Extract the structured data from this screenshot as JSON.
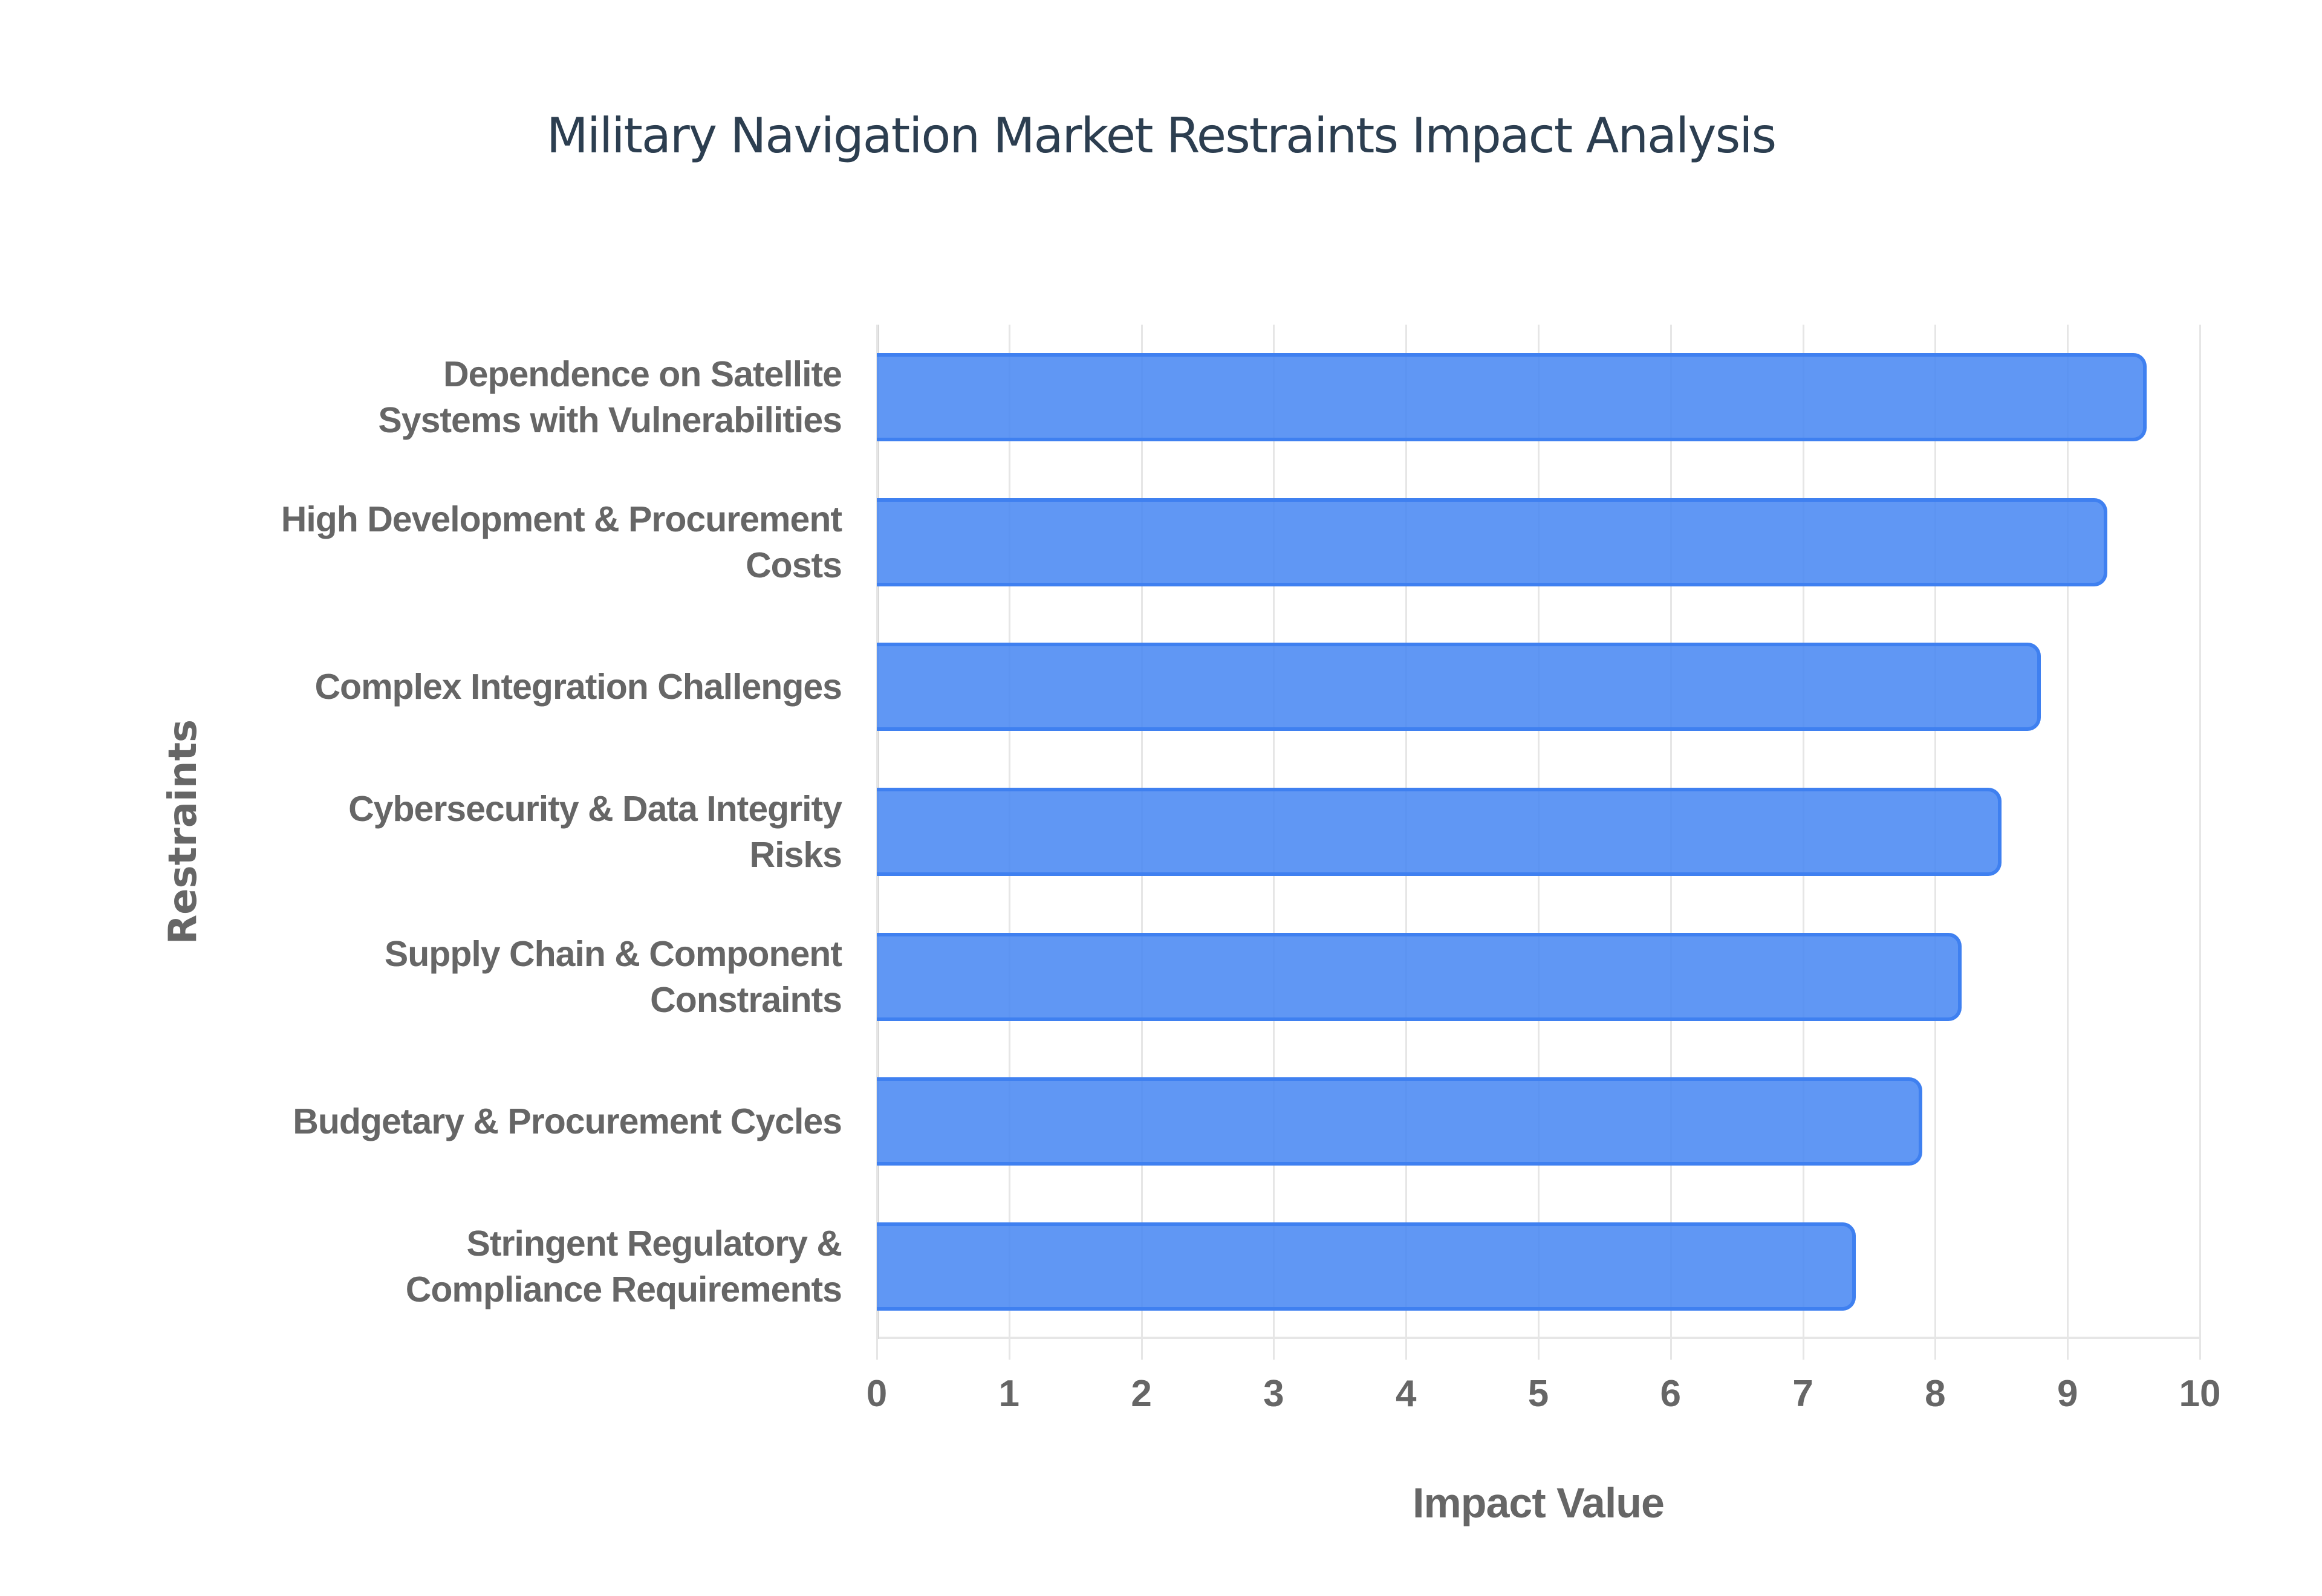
{
  "title": "Military Navigation Market Restraints Impact Analysis",
  "colors": {
    "bar_fill": "#5e97f6",
    "bar_border": "#3f80f0",
    "title": "#2c3e50",
    "axis_text": "#666666",
    "grid": "#e6e6e6"
  },
  "chart_data": {
    "type": "bar",
    "orientation": "horizontal",
    "title": "Military Navigation Market Restraints Impact Analysis",
    "xlabel": "Impact Value",
    "ylabel": "Restraints",
    "xlim": [
      0,
      10
    ],
    "xticks": [
      "0",
      "1",
      "2",
      "3",
      "4",
      "5",
      "6",
      "7",
      "8",
      "9",
      "10"
    ],
    "grid": true,
    "legend": null,
    "categories": [
      "Dependence on Satellite Systems with Vulnerabilities",
      "High Development & Procurement Costs",
      "Complex Integration Challenges",
      "Cybersecurity & Data Integrity Risks",
      "Supply Chain & Component Constraints",
      "Budgetary & Procurement Cycles",
      "Stringent Regulatory & Compliance Requirements"
    ],
    "values": [
      9.6,
      9.3,
      8.8,
      8.5,
      8.2,
      7.9,
      7.4
    ]
  },
  "labels": [
    [
      "Dependence on Satellite",
      "Systems with Vulnerabilities"
    ],
    [
      "High Development & Procurement",
      "Costs"
    ],
    [
      "Complex Integration Challenges"
    ],
    [
      "Cybersecurity & Data Integrity",
      "Risks"
    ],
    [
      "Supply Chain & Component",
      "Constraints"
    ],
    [
      "Budgetary & Procurement Cycles"
    ],
    [
      "Stringent Regulatory &",
      "Compliance Requirements"
    ]
  ]
}
